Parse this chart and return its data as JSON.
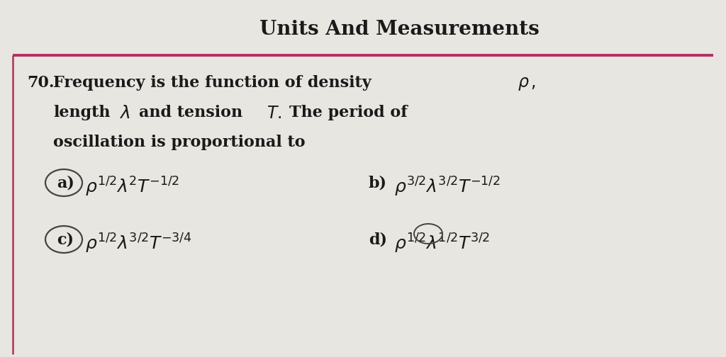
{
  "title": "Units And Measurements",
  "title_fontsize": 20,
  "title_color": "#1a1a1a",
  "separator_color": "#b03060",
  "bg_color": "#e8e6e0",
  "left_border_color": "#aa3355",
  "text_color": "#1a1a1a",
  "circle_color": "#444444",
  "body_fontsize": 16,
  "math_fontsize": 16,
  "line1": "70.  Frequency is the function of density",
  "line2_a": "      length",
  "line2_b": "and tension",
  "line2_c": ". The period of",
  "line3": "      oscillation is proportional to",
  "opt_a_label": "a)",
  "opt_a_math": "$\\rho^{1/2}\\lambda^{2}T^{-1/2}$",
  "opt_b_label": "b)",
  "opt_b_math": "$\\rho^{3/2}\\lambda^{3/2}T^{-1/2}$",
  "opt_c_label": "c)",
  "opt_c_math": "$\\rho^{1/2}\\lambda^{3/2}T^{-3/4}$",
  "opt_d_label": "d)",
  "opt_d_math": "$\\rho^{1/2}\\lambda^{1/2}T^{3/2}$"
}
